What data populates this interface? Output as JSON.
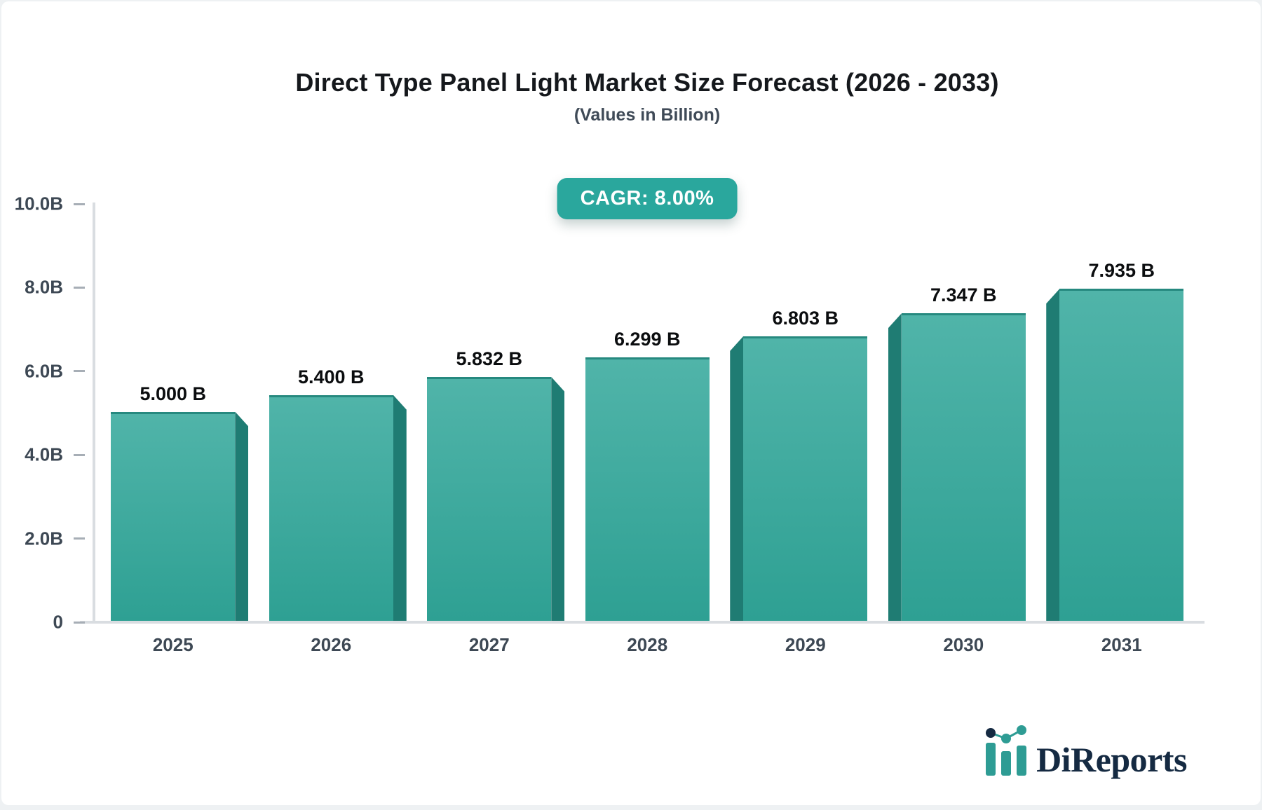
{
  "title": "Direct Type Panel Light Market Size Forecast (2026 - 2033)",
  "subtitle": "(Values in Billion)",
  "badge": {
    "label": "CAGR: 8.00%"
  },
  "chart_data": {
    "type": "bar",
    "categories": [
      "2025",
      "2026",
      "2027",
      "2028",
      "2029",
      "2030",
      "2031"
    ],
    "values": [
      5.0,
      5.4,
      5.832,
      6.299,
      6.803,
      7.347,
      7.935
    ],
    "value_labels": [
      "5.000 B",
      "5.400 B",
      "5.832 B",
      "6.299 B",
      "6.803 B",
      "7.347 B",
      "7.935 B"
    ],
    "title": "Direct Type Panel Light Market Size Forecast (2026 - 2033)",
    "xlabel": "",
    "ylabel": "",
    "ylim": [
      0,
      10
    ],
    "yticks": [
      {
        "label": "10.0B",
        "value": 10
      },
      {
        "label": "8.0B",
        "value": 8
      },
      {
        "label": "6.0B",
        "value": 6
      },
      {
        "label": "4.0B",
        "value": 4
      },
      {
        "label": "2.0B",
        "value": 2
      },
      {
        "label": "0",
        "value": 0
      }
    ],
    "grid": "off",
    "legend": "none",
    "bar_style": "3d-extruded, perspective vanishing toward center column"
  },
  "logo": {
    "text": "DiReports",
    "icon": "bar-chart-logo-icon"
  },
  "colors": {
    "bar_top": "#50b4a9",
    "bar_bottom": "#2ea093",
    "bar_edge": "#26897f",
    "bar_side": "#1f7c73",
    "badge_bg": "#2aa79d",
    "badge_text": "#ffffff",
    "axis_line": "#d9dde1",
    "tick": "#a7aeb6",
    "axis_text": "#3d4854",
    "title_text": "#15181c",
    "subtitle_text": "#3f4a57",
    "value_text": "#0b0d0f",
    "logo_navy": "#152a42",
    "logo_teal": "#2e9c94"
  }
}
